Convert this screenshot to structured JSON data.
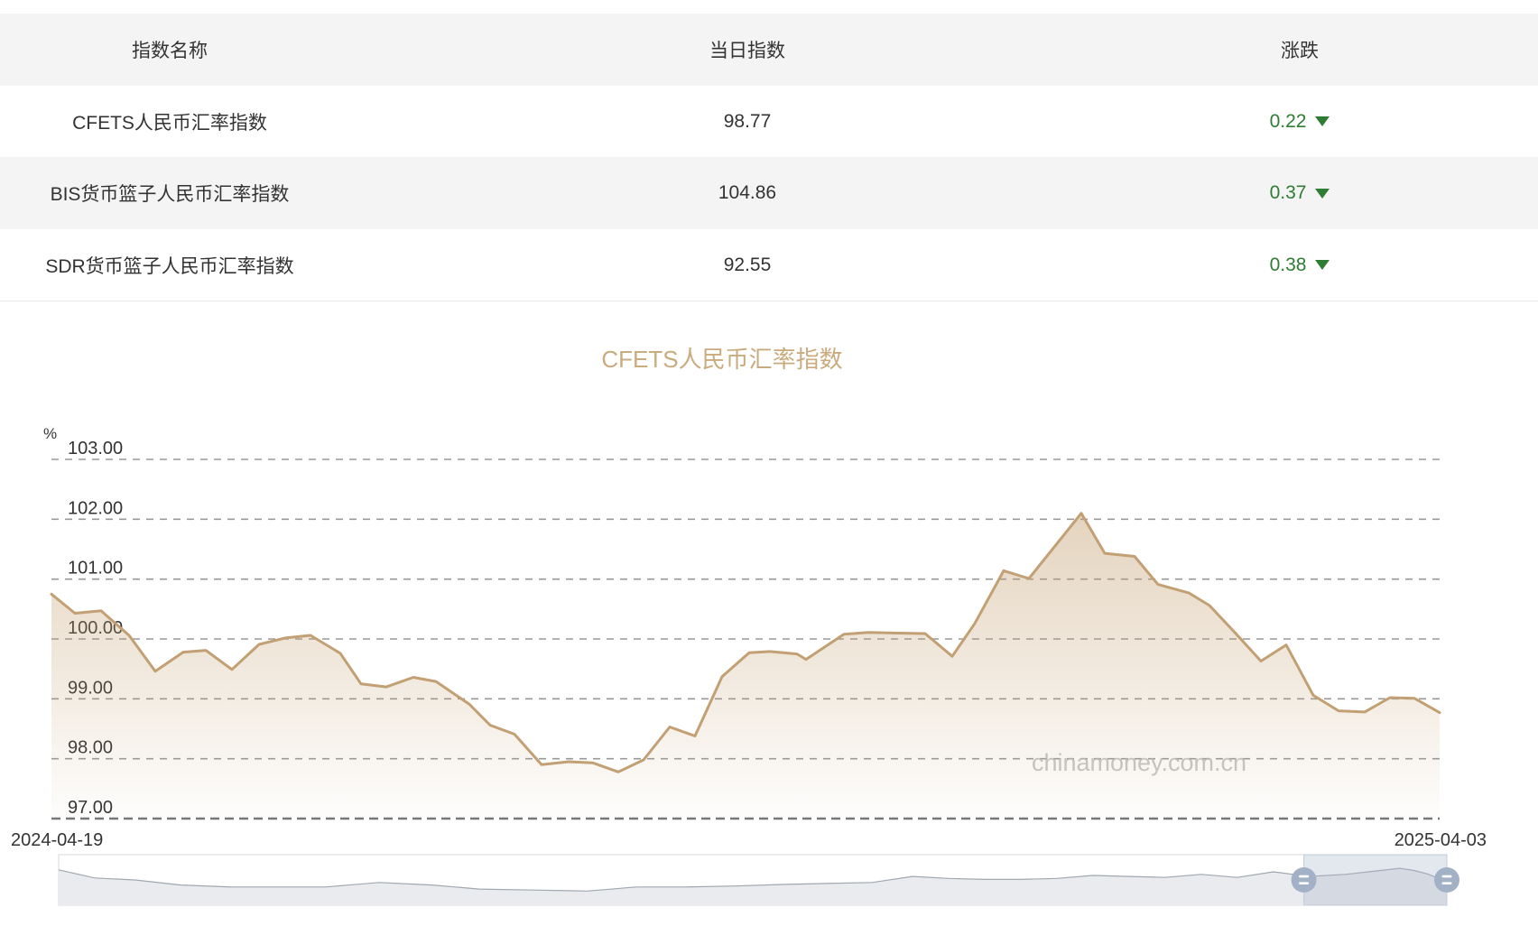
{
  "table": {
    "headers": [
      "指数名称",
      "当日指数",
      "涨跌"
    ],
    "rows": [
      {
        "name": "CFETS人民币汇率指数",
        "value": "98.77",
        "change": "0.22",
        "direction": "down"
      },
      {
        "name": "BIS货币篮子人民币汇率指数",
        "value": "104.86",
        "change": "0.37",
        "direction": "down"
      },
      {
        "name": "SDR货币篮子人民币汇率指数",
        "value": "92.55",
        "change": "0.38",
        "direction": "down"
      }
    ]
  },
  "chart": {
    "title": "CFETS人民币汇率指数",
    "unit_label": "%",
    "watermark": "chinamoney.com.cn",
    "date_start": "2024-04-19",
    "date_end": "2025-04-03"
  },
  "chart_data": {
    "type": "area",
    "title": "CFETS人民币汇率指数",
    "ylabel": "%",
    "ylim": [
      97,
      103
    ],
    "yticks": [
      103,
      102,
      101,
      100,
      99,
      98,
      97
    ],
    "ytick_labels": [
      "103.00",
      "102.00",
      "101.00",
      "100.00",
      "99.00",
      "98.00",
      "97.00"
    ],
    "grid": "dashed",
    "x_range": [
      "2024-04-19",
      "2025-04-03"
    ],
    "series": [
      {
        "name": "CFETS人民币汇率指数",
        "points": [
          [
            57,
            100.75
          ],
          [
            83,
            100.43
          ],
          [
            112,
            100.47
          ],
          [
            143,
            100.06
          ],
          [
            172,
            99.46
          ],
          [
            203,
            99.78
          ],
          [
            228,
            99.81
          ],
          [
            257,
            99.49
          ],
          [
            287,
            99.91
          ],
          [
            317,
            100.02
          ],
          [
            344,
            100.06
          ],
          [
            377,
            99.76
          ],
          [
            400,
            99.25
          ],
          [
            428,
            99.2
          ],
          [
            458,
            99.36
          ],
          [
            483,
            99.29
          ],
          [
            520,
            98.91
          ],
          [
            543,
            98.56
          ],
          [
            570,
            98.41
          ],
          [
            600,
            97.9
          ],
          [
            630,
            97.95
          ],
          [
            657,
            97.93
          ],
          [
            685,
            97.78
          ],
          [
            713,
            97.98
          ],
          [
            742,
            98.53
          ],
          [
            770,
            98.38
          ],
          [
            800,
            99.37
          ],
          [
            830,
            99.77
          ],
          [
            853,
            99.79
          ],
          [
            883,
            99.75
          ],
          [
            893,
            99.66
          ],
          [
            935,
            100.08
          ],
          [
            962,
            100.11
          ],
          [
            990,
            100.1
          ],
          [
            1025,
            100.09
          ],
          [
            1055,
            99.71
          ],
          [
            1080,
            100.26
          ],
          [
            1112,
            101.14
          ],
          [
            1140,
            101.01
          ],
          [
            1198,
            102.1
          ],
          [
            1224,
            101.43
          ],
          [
            1257,
            101.38
          ],
          [
            1283,
            100.91
          ],
          [
            1317,
            100.77
          ],
          [
            1340,
            100.56
          ],
          [
            1368,
            100.11
          ],
          [
            1397,
            99.63
          ],
          [
            1425,
            99.9
          ],
          [
            1455,
            99.06
          ],
          [
            1483,
            98.8
          ],
          [
            1512,
            98.78
          ],
          [
            1540,
            99.02
          ],
          [
            1567,
            99.01
          ],
          [
            1595,
            98.77
          ]
        ]
      }
    ],
    "navigator": {
      "selected_range_frac": [
        0.897,
        1.0
      ],
      "points_frac": [
        [
          0,
          0.3
        ],
        [
          0.026,
          0.46
        ],
        [
          0.055,
          0.5
        ],
        [
          0.088,
          0.6
        ],
        [
          0.124,
          0.64
        ],
        [
          0.159,
          0.64
        ],
        [
          0.192,
          0.64
        ],
        [
          0.231,
          0.55
        ],
        [
          0.269,
          0.6
        ],
        [
          0.303,
          0.68
        ],
        [
          0.342,
          0.7
        ],
        [
          0.381,
          0.72
        ],
        [
          0.416,
          0.64
        ],
        [
          0.452,
          0.64
        ],
        [
          0.488,
          0.62
        ],
        [
          0.521,
          0.59
        ],
        [
          0.553,
          0.57
        ],
        [
          0.586,
          0.55
        ],
        [
          0.615,
          0.43
        ],
        [
          0.641,
          0.47
        ],
        [
          0.667,
          0.49
        ],
        [
          0.693,
          0.49
        ],
        [
          0.719,
          0.47
        ],
        [
          0.745,
          0.41
        ],
        [
          0.771,
          0.43
        ],
        [
          0.797,
          0.45
        ],
        [
          0.823,
          0.39
        ],
        [
          0.849,
          0.45
        ],
        [
          0.875,
          0.34
        ],
        [
          0.901,
          0.43
        ],
        [
          0.927,
          0.39
        ],
        [
          0.953,
          0.31
        ],
        [
          0.966,
          0.27
        ],
        [
          0.976,
          0.31
        ],
        [
          0.986,
          0.38
        ],
        [
          1,
          0.54
        ]
      ]
    }
  },
  "colors": {
    "accent_tan": "#c9ab7e",
    "line": "#c2a074",
    "area_top": "#c09a68",
    "down_green": "#2e7d32",
    "row_alt_bg": "#f4f4f4",
    "grid": "#999999",
    "axis_bottom": "#777777",
    "watermark": "#b9b9b9",
    "navigator_border": "#d9d9d9",
    "navigator_series_line": "#a0a8b0",
    "navigator_series_fill": "#e9ebee",
    "navigator_selection": "#a9b7cc",
    "navigator_handle": "#a3b1c6"
  }
}
